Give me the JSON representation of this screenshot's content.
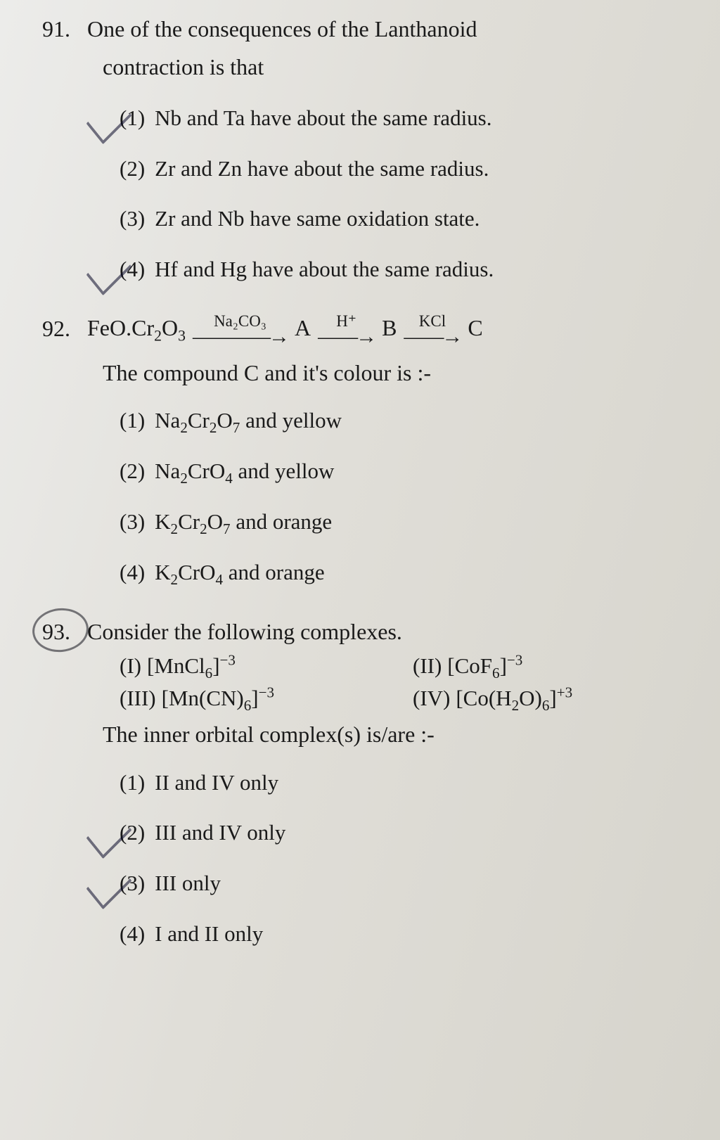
{
  "q91": {
    "number": "91.",
    "stem_line1": "One of the consequences of the Lanthanoid",
    "stem_line2": "contraction is that",
    "opts": {
      "o1": {
        "mark": "(1)",
        "text": "Nb and Ta have about the same radius."
      },
      "o2": {
        "mark": "(2)",
        "text": "Zr and Zn have about the same radius."
      },
      "o3": {
        "mark": "(3)",
        "text": "Zr and Nb have same oxidation state."
      },
      "o4": {
        "mark": "(4)",
        "text": "Hf and Hg have about the same radius."
      }
    }
  },
  "q92": {
    "number": "92.",
    "reactant": "FeO.Cr",
    "arrow1_top": "Na₂CO₃",
    "node_a": "A",
    "arrow2_top": "H⁺",
    "node_b": "B",
    "arrow3_top": "KCl",
    "node_c": "C",
    "sub_line": "The compound C and it's colour is :-",
    "opts": {
      "o1": {
        "mark": "(1)",
        "html": "Na<sub>2</sub>Cr<sub>2</sub>O<sub>7</sub> and yellow"
      },
      "o2": {
        "mark": "(2)",
        "html": "Na<sub>2</sub>CrO<sub>4</sub> and yellow"
      },
      "o3": {
        "mark": "(3)",
        "html": "K<sub>2</sub>Cr<sub>2</sub>O<sub>7</sub> and orange"
      },
      "o4": {
        "mark": "(4)",
        "html": "K<sub>2</sub>CrO<sub>4</sub> and orange"
      }
    }
  },
  "q93": {
    "number": "93.",
    "stem": "Consider the following complexes.",
    "roman": {
      "r1": {
        "mark": "(I)",
        "html": "[MnCl<sub>6</sub>]<sup>−3</sup>"
      },
      "r2": {
        "mark": "(II)",
        "html": "[CoF<sub>6</sub>]<sup>−3</sup>"
      },
      "r3": {
        "mark": "(III)",
        "html": "[Mn(CN)<sub>6</sub>]<sup>−3</sup>"
      },
      "r4": {
        "mark": "(IV)",
        "html": "[Co(H<sub>2</sub>O)<sub>6</sub>]<sup>+3</sup>"
      }
    },
    "sub_line": "The inner orbital complex(s) is/are :-",
    "opts": {
      "o1": {
        "mark": "(1)",
        "text": "II and IV only"
      },
      "o2": {
        "mark": "(2)",
        "text": "III and IV only"
      },
      "o3": {
        "mark": "(3)",
        "text": "III only"
      },
      "o4": {
        "mark": "(4)",
        "text": "I and II only"
      }
    }
  }
}
